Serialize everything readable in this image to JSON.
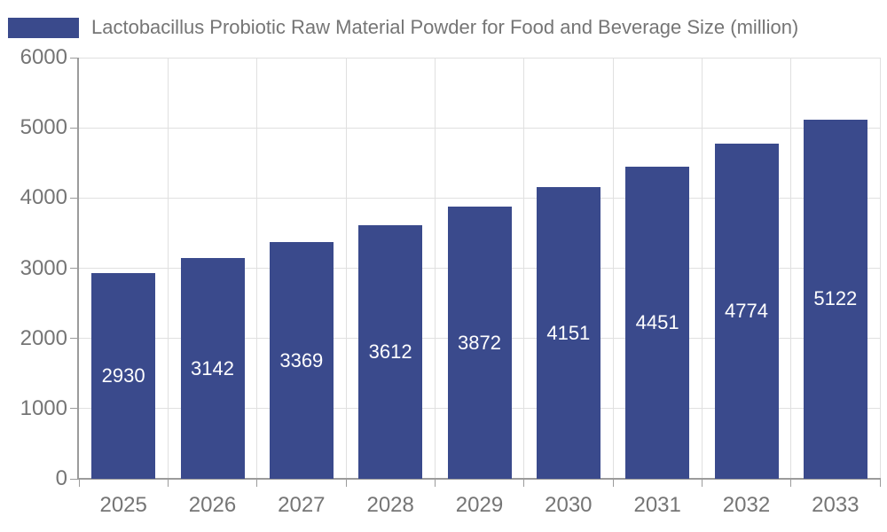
{
  "legend": {
    "label": "Lactobacillus Probiotic Raw Material Powder for Food and Beverage Size (million)"
  },
  "chart_data": {
    "type": "bar",
    "title": "Lactobacillus Probiotic Raw Material Powder for Food and Beverage Size (million)",
    "categories": [
      "2025",
      "2026",
      "2027",
      "2028",
      "2029",
      "2030",
      "2031",
      "2032",
      "2033"
    ],
    "values": [
      2930,
      3142,
      3369,
      3612,
      3872,
      4151,
      4451,
      4774,
      5122
    ],
    "xlabel": "",
    "ylabel": "",
    "ylim": [
      0,
      6000
    ],
    "yticks": [
      0,
      1000,
      2000,
      3000,
      4000,
      5000,
      6000
    ],
    "grid": true,
    "legend_position": "top-left",
    "value_label_position": "inside-center"
  },
  "colors": {
    "bar": "#3A4A8C",
    "grid": "#E0E0E0",
    "axis": "#9B9B9B",
    "tick_text": "#757575",
    "legend_text": "#757575",
    "value_text": "#FFFFFF",
    "background": "#FFFFFF"
  }
}
